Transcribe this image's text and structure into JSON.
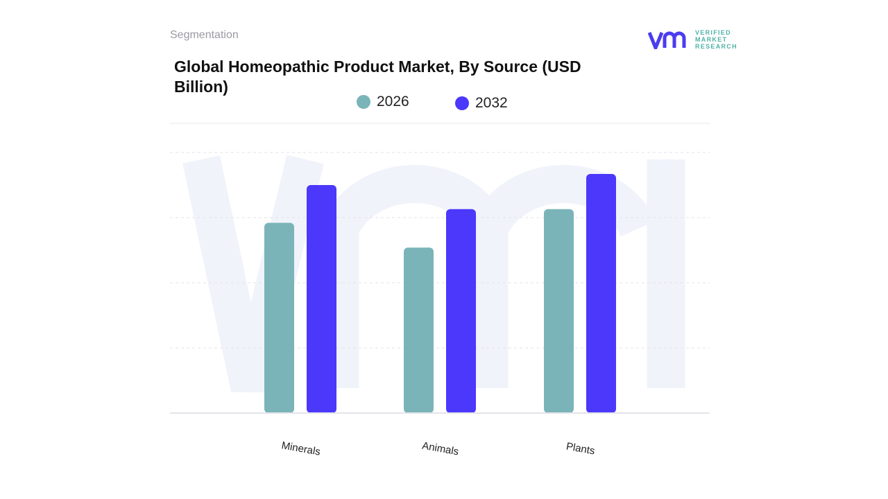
{
  "header": {
    "section": "Segmentation"
  },
  "logo": {
    "text_lines": [
      "VERIFIED",
      "MARKET",
      "RESEARCH"
    ],
    "colors": {
      "mark": "#4b3cf0",
      "text": "#4fb3a8"
    }
  },
  "chart_data": {
    "type": "bar",
    "title": "Global Homeopathic Product Market, By Source (USD Billion)",
    "categories": [
      "Minerals",
      "Animals",
      "Plants"
    ],
    "series": [
      {
        "name": "2026",
        "color": "#7ab4b8",
        "values": [
          2.92,
          2.54,
          3.13
        ]
      },
      {
        "name": "2032",
        "color": "#4b38fb",
        "values": [
          3.5,
          3.13,
          3.67
        ]
      }
    ],
    "xlabel": "",
    "ylabel": "",
    "ylim": [
      0,
      4
    ],
    "y_tick_labels_shown": false,
    "grid": true,
    "legend": "top-center"
  }
}
